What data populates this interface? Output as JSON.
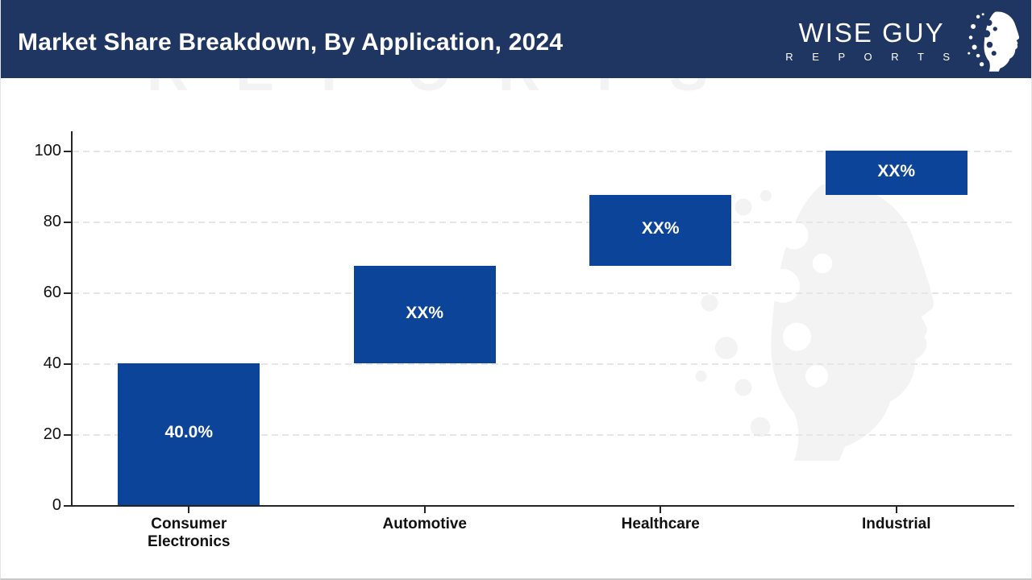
{
  "header": {
    "title": "Market Share Breakdown, By Application, 2024",
    "bg_color": "#203662",
    "logo": {
      "line1": "WISE GUY",
      "line2": "R E P O R T S"
    }
  },
  "watermark": {
    "line1": "WISE GUY",
    "line2": "REPORTS"
  },
  "chart_data": {
    "type": "bar",
    "subtype": "waterfall",
    "title": "Market Share Breakdown, By Application, 2024",
    "categories": [
      "Consumer Electronics",
      "Automotive",
      "Healthcare",
      "Industrial"
    ],
    "tick_labels": [
      "Consumer\nElectronics",
      "Automotive",
      "Healthcare",
      "Industrial"
    ],
    "segments": [
      {
        "category": "Consumer Electronics",
        "start": 0,
        "end": 40,
        "value": 40,
        "label": "40.0%"
      },
      {
        "category": "Automotive",
        "start": 40,
        "end": 67.5,
        "value": 27.5,
        "label": "XX%"
      },
      {
        "category": "Healthcare",
        "start": 67.5,
        "end": 87.5,
        "value": 20,
        "label": "XX%"
      },
      {
        "category": "Industrial",
        "start": 87.5,
        "end": 100,
        "value": 12.5,
        "label": "XX%"
      }
    ],
    "xlabel": "",
    "ylabel": "",
    "ylim": [
      0,
      100
    ],
    "yticks": [
      0,
      20,
      40,
      60,
      80,
      100
    ],
    "grid": "horizontal-dashed",
    "legend": "none",
    "bar_color": "#0c4499",
    "bar_label_color": "#ffffff",
    "axis_color": "#242424"
  }
}
